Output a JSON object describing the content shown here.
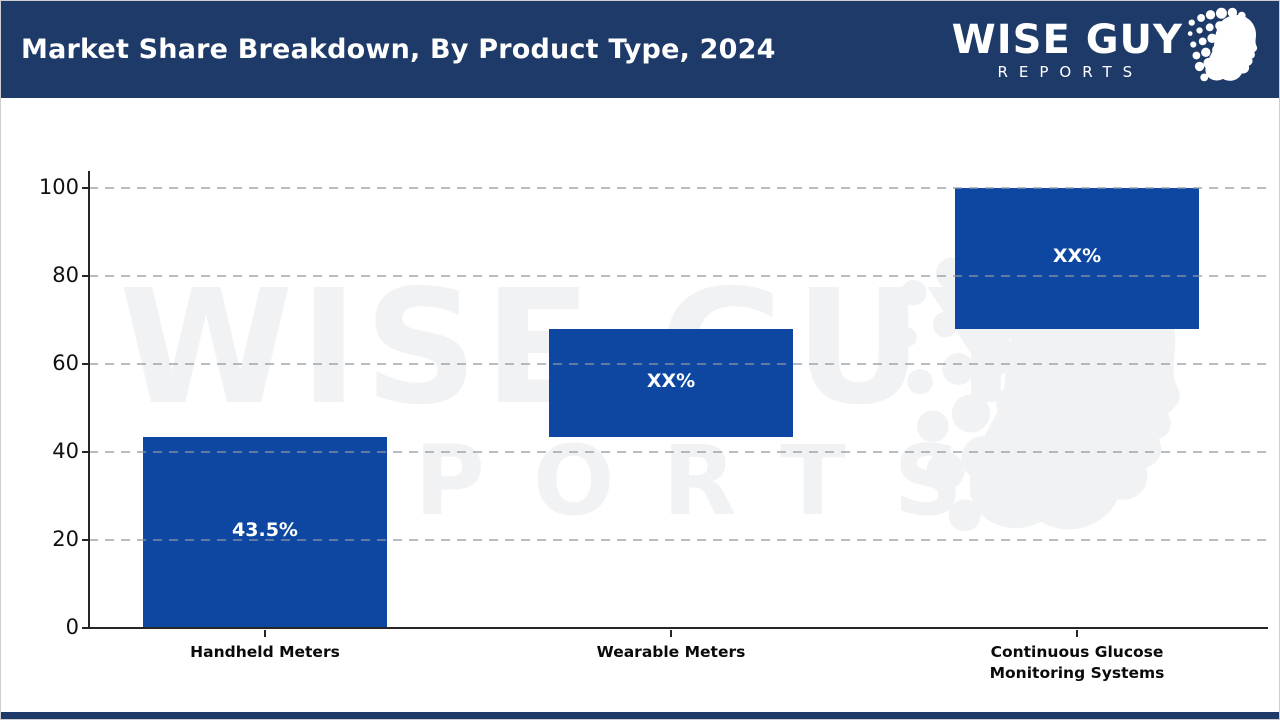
{
  "header": {
    "title": "Market Share Breakdown, By Product Type, 2024",
    "bg_color": "#1e3a68",
    "brand": {
      "line1": "WISE GUY",
      "line2": "REPORTS"
    }
  },
  "watermark": {
    "line1": "WISE GUY",
    "line2": "REPORTS"
  },
  "chart_data": {
    "type": "bar",
    "subtype": "waterfall",
    "title": "Market Share Breakdown, By Product Type, 2024",
    "categories": [
      "Handheld Meters",
      "Wearable Meters",
      "Continuous Glucose Monitoring Systems"
    ],
    "series": [
      {
        "name": "Market Share (%)",
        "segments": [
          {
            "category": "Handheld Meters",
            "start": 0,
            "end": 43.5,
            "label": "43.5%"
          },
          {
            "category": "Wearable Meters",
            "start": 43.5,
            "end": 68,
            "label": "XX%"
          },
          {
            "category": "Continuous Glucose Monitoring Systems",
            "start": 68,
            "end": 100,
            "label": "XX%"
          }
        ]
      }
    ],
    "yticks": [
      0,
      20,
      40,
      60,
      80,
      100
    ],
    "ylim": [
      0,
      103.5
    ],
    "xlabel": "",
    "ylabel": "",
    "grid": true,
    "grid_style": "dashed",
    "legend": "none",
    "bar_color": "#0d47a1",
    "bar_label_color": "#ffffff",
    "axis_color": "#262626"
  }
}
